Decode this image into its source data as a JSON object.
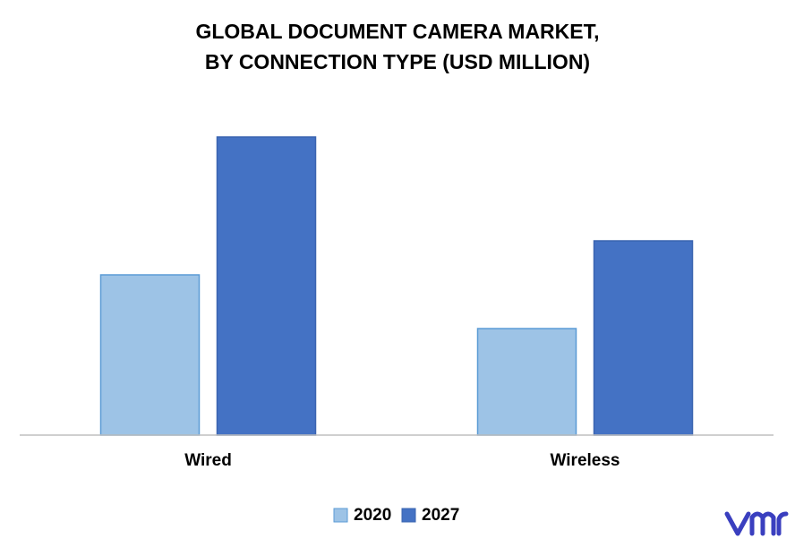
{
  "chart_data": {
    "type": "bar",
    "title": [
      "GLOBAL DOCUMENT CAMERA MARKET,",
      "BY CONNECTION TYPE (USD MILLION)"
    ],
    "categories": [
      "Wired",
      "Wireless"
    ],
    "series": [
      {
        "name": "2020",
        "color": "#9dc3e6",
        "values": [
          179,
          119
        ]
      },
      {
        "name": "2027",
        "color": "#4472c4",
        "values": [
          333,
          217
        ]
      }
    ],
    "ylim": [
      0,
      360
    ],
    "legend": "bottom"
  }
}
